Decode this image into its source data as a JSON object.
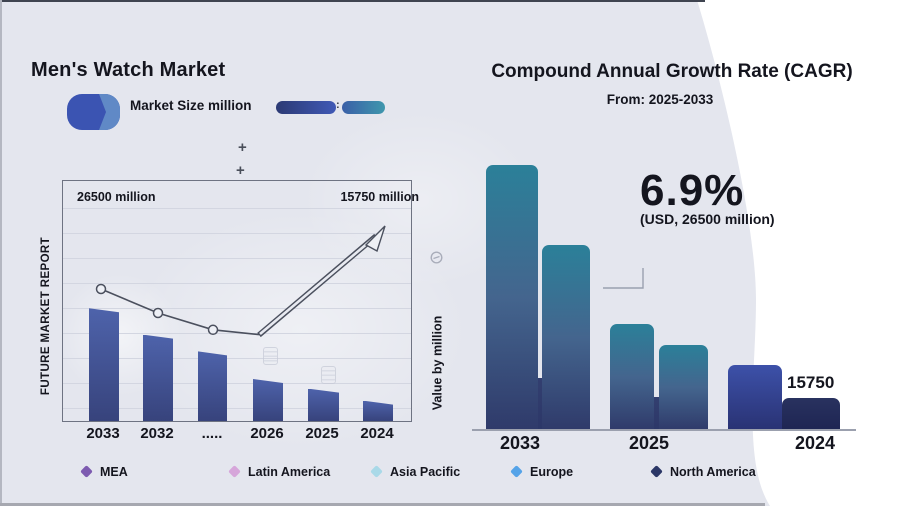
{
  "title": "Men's Watch Market",
  "market_size_legend": {
    "label": "Market Size million",
    "colon": ":"
  },
  "plus_marks": {
    "first": "+",
    "second": "+"
  },
  "left_chart": {
    "report_label": "FUTURE MARKET REPORT",
    "top_left_value": "26500 million",
    "top_right_value": "15750 million",
    "categories": [
      "2033",
      "2032",
      ".....",
      "2026",
      "2025",
      "2024"
    ]
  },
  "mid": {
    "axis_label": "Value by million"
  },
  "cagr": {
    "title": "Compound Annual Growth Rate (CAGR)",
    "subtitle": "From: 2025-2033",
    "value": "6.9%",
    "value_sub": "(USD, 26500 million)",
    "bar_label": "15750",
    "categories": [
      "2033",
      "2025",
      "2024"
    ]
  },
  "region_legend": {
    "items": [
      {
        "label": "MEA",
        "color": "#7d5bb0"
      },
      {
        "label": "Latin America",
        "color": "#d6a6da"
      },
      {
        "label": "Asia Pacific",
        "color": "#a9d9e8"
      },
      {
        "label": "Europe",
        "color": "#55a3e8"
      },
      {
        "label": "North America",
        "color": "#2b3767"
      }
    ]
  },
  "chart_data": [
    {
      "type": "bar",
      "title": "Men's Watch Market",
      "legend": [
        "Market Size million"
      ],
      "legend_position": "top",
      "categories": [
        "2033",
        "2032",
        ".....",
        "2026",
        "2025",
        "2024"
      ],
      "series": [
        {
          "name": "Market Size million (bar height, % of plot)",
          "values": [
            47,
            36,
            29,
            17.5,
            13.5,
            8.5
          ]
        },
        {
          "name": "Trend line (marker height, % of plot)",
          "values": [
            55,
            45,
            38,
            36
          ]
        }
      ],
      "bar_colors": [
        "#4e63ab",
        "#37437c"
      ],
      "grid": true,
      "annotations": [
        "26500 million (top-left)",
        "15750 million (top-right)",
        "outlined arrow rising from 2026 toward 15750 million"
      ],
      "ylabel": "FUTURE MARKET REPORT / Value by million"
    },
    {
      "type": "bar",
      "title": "Compound Annual Growth Rate (CAGR)",
      "subtitle": "From: 2025-2033",
      "categories": [
        "2033",
        "2025",
        "2024"
      ],
      "series": [
        {
          "name": "left bar of pair (height, % of tallest)",
          "values": [
            100,
            40,
            24.5
          ]
        },
        {
          "name": "right bar of pair (height, % of tallest)",
          "values": [
            70,
            32,
            12
          ]
        }
      ],
      "pair_gradient": [
        "#2b8099",
        "#44658e",
        "#2f3a6a"
      ],
      "left_2024_gradient": [
        "#3d51a9",
        "#293273"
      ],
      "right_2024_gradient": [
        "#29325f",
        "#1e2553"
      ],
      "connector_gradient": [
        "#333f70",
        "#2c3768"
      ],
      "grid": false,
      "annotations": [
        "6.9%",
        "(USD, 26500 million)",
        "15750 on 2024 right bar"
      ]
    }
  ]
}
